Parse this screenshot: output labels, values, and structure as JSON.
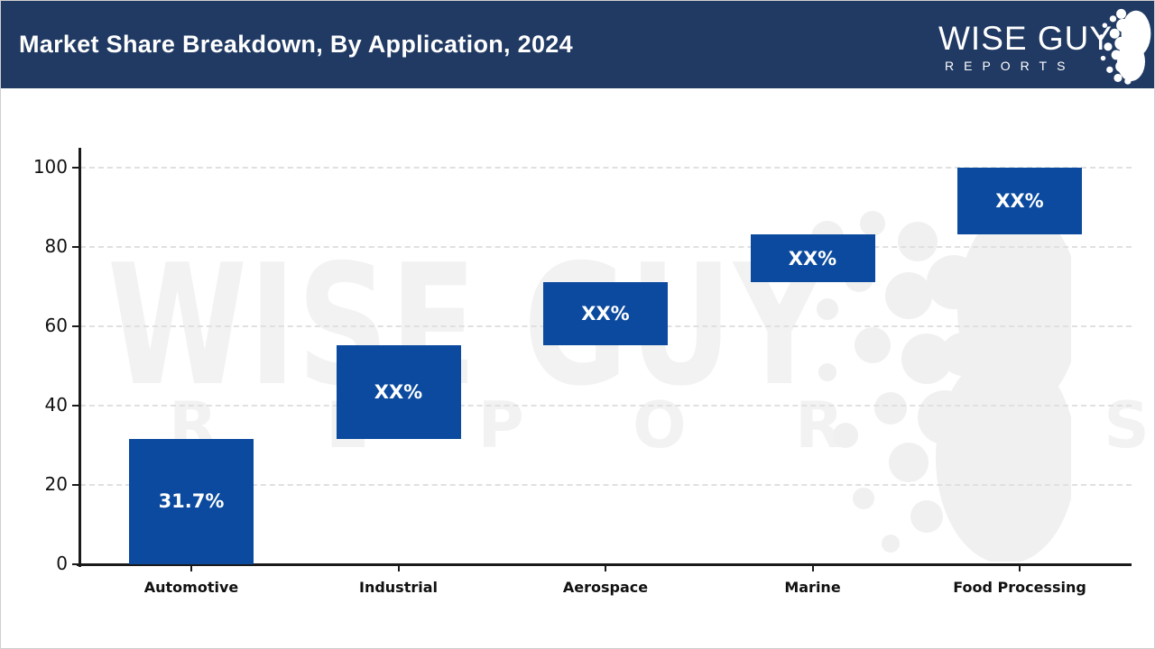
{
  "colors": {
    "header_navy": "#213a63",
    "bar_blue": "#0b4a9e",
    "grid_gray": "#e0e0e0",
    "watermark_gray": "#f2f2f2",
    "axis_black": "#1a1a1a",
    "label_white": "#ffffff"
  },
  "header": {
    "title": "Market Share Breakdown, By Application, 2024",
    "logo": {
      "line1": "WISE GUY",
      "line2": "REPORTS"
    }
  },
  "watermark": {
    "line1": "WISE GUY",
    "line2": "R E P O R T S"
  },
  "chart_data": {
    "type": "bar",
    "subtype": "waterfall",
    "title": "Market Share Breakdown, By Application, 2024",
    "xlabel": "",
    "ylabel": "",
    "ylim": [
      0,
      105
    ],
    "yticks": [
      0,
      20,
      40,
      60,
      80,
      100
    ],
    "grid": true,
    "legend": false,
    "categories": [
      "Automotive",
      "Industrial",
      "Aerospace",
      "Marine",
      "Food Processing"
    ],
    "segments": [
      {
        "category": "Automotive",
        "start": 0,
        "end": 31.7,
        "label": "31.7%"
      },
      {
        "category": "Industrial",
        "start": 31.7,
        "end": 55.2,
        "label": "XX%"
      },
      {
        "category": "Aerospace",
        "start": 55.2,
        "end": 71.1,
        "label": "XX%"
      },
      {
        "category": "Marine",
        "start": 71.1,
        "end": 83.2,
        "label": "XX%"
      },
      {
        "category": "Food Processing",
        "start": 83.2,
        "end": 100,
        "label": "XX%"
      }
    ]
  }
}
